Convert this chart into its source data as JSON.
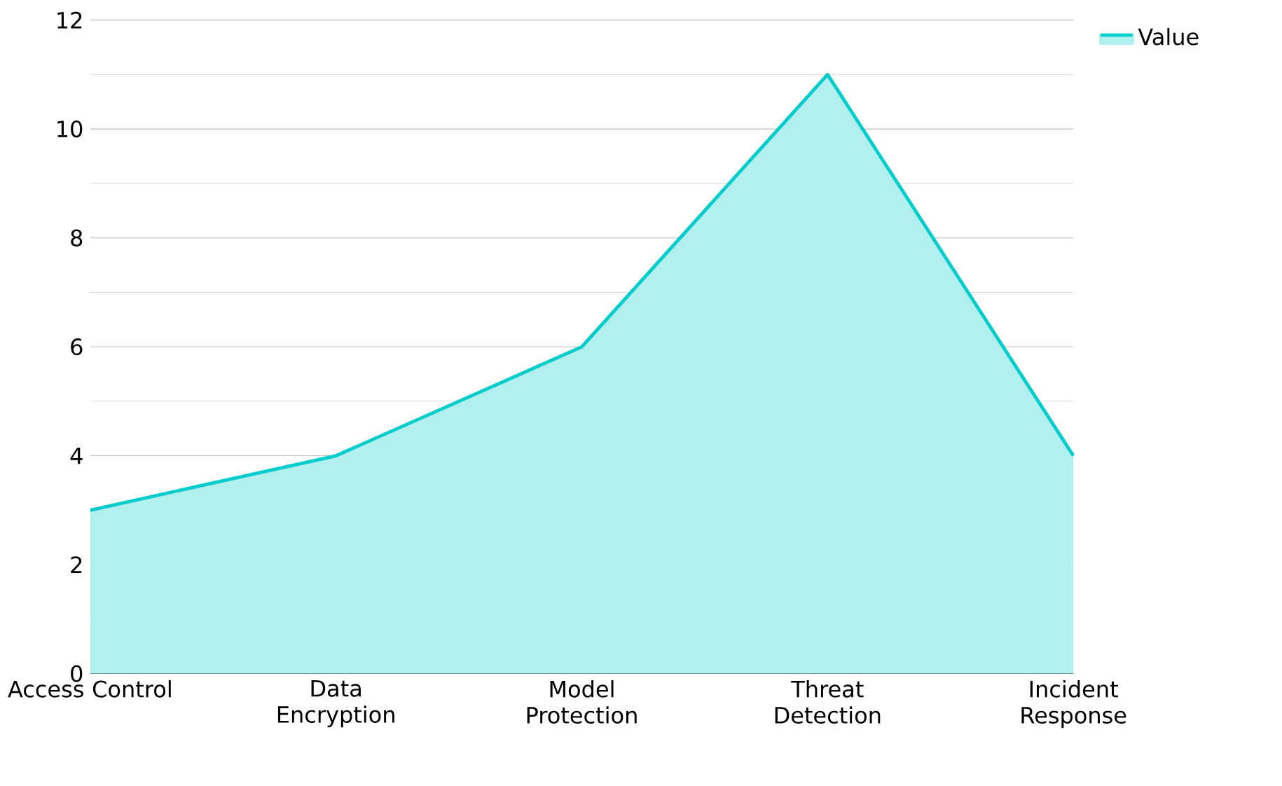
{
  "chart_data": {
    "type": "area",
    "categories": [
      "Access Control",
      "Data Encryption",
      "Model Protection",
      "Threat Detection",
      "Incident Response"
    ],
    "series": [
      {
        "name": "Value",
        "color": "#00cccc",
        "values": [
          3,
          4,
          6,
          11,
          4
        ]
      }
    ],
    "ylim": [
      0,
      12
    ],
    "yticks": [
      0,
      2,
      4,
      6,
      8,
      10,
      12
    ],
    "grid": "y",
    "legend": "top right"
  }
}
